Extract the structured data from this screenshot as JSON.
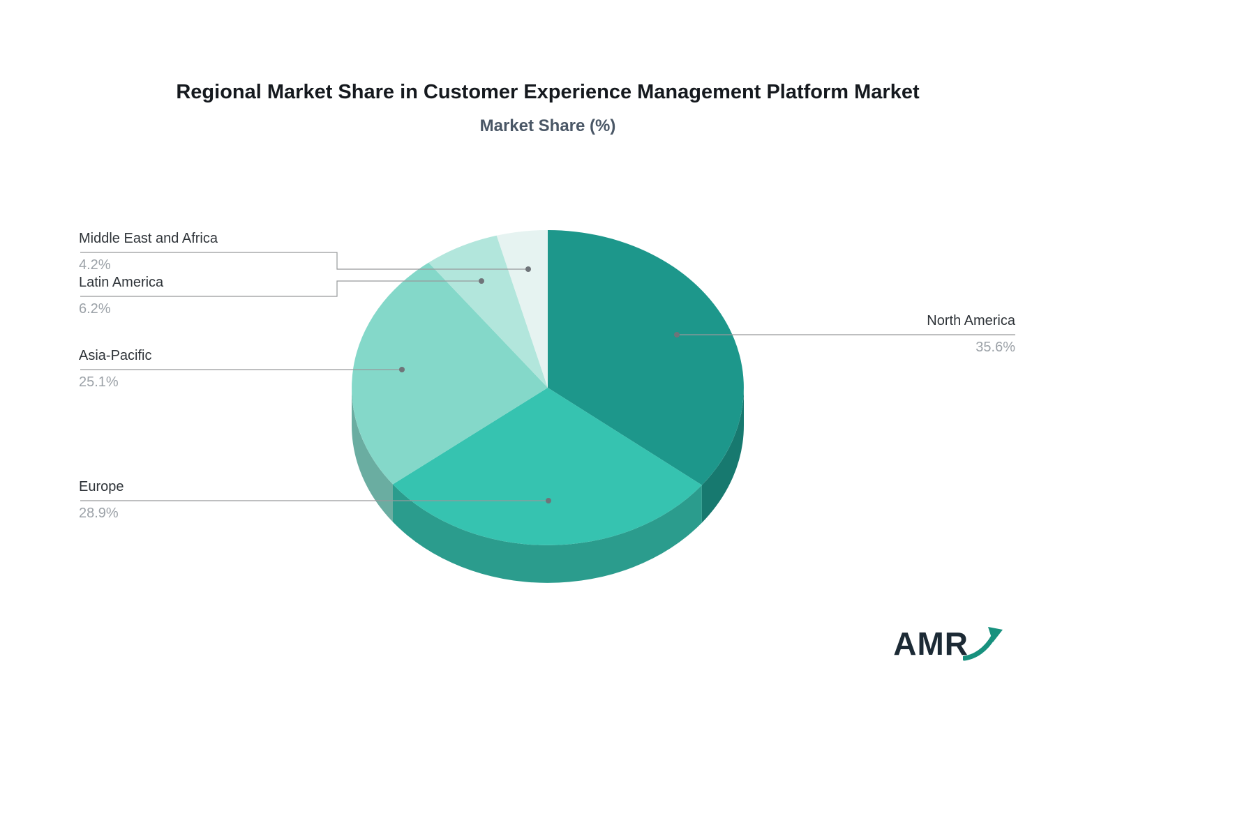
{
  "title": "Regional Market Share in Customer Experience Management Platform Market",
  "subtitle": "Market Share (%)",
  "logo": {
    "text": "AMR"
  },
  "chart_data": {
    "type": "pie",
    "style": "3d",
    "title": "Regional Market Share in Customer Experience Management Platform Market",
    "subtitle": "Market Share (%)",
    "categories": [
      "North America",
      "Europe",
      "Asia-Pacific",
      "Latin America",
      "Middle East and Africa"
    ],
    "values": [
      35.6,
      28.9,
      25.1,
      6.2,
      4.2
    ],
    "value_labels": [
      "35.6%",
      "28.9%",
      "25.1%",
      "6.2%",
      "4.2%"
    ],
    "colors": [
      "#1d978b",
      "#36c3b0",
      "#84d8c9",
      "#b2e6dc",
      "#e6f3f1"
    ],
    "start_angle_deg": 0,
    "direction": "clockwise",
    "legend": "none",
    "label_color": "#2e3338",
    "value_color": "#9ba1a7",
    "leader_line_color": "#97999b",
    "leader_dot_color": "#6f7479",
    "accent_color": "#17917e"
  }
}
